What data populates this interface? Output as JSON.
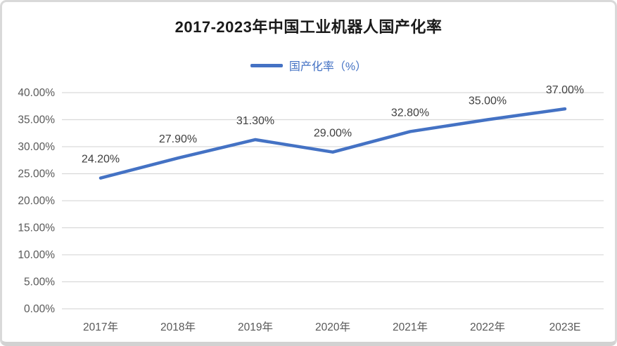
{
  "title": "2017-2023年中国工业机器人国产化率",
  "legend": {
    "label": "国产化率（%）",
    "color": "#4472C4"
  },
  "chart_data": {
    "type": "line",
    "title": "2017-2023年中国工业机器人国产化率",
    "categories": [
      "2017年",
      "2018年",
      "2019年",
      "2020年",
      "2021年",
      "2022年",
      "2023E"
    ],
    "series": [
      {
        "name": "国产化率（%）",
        "values": [
          24.2,
          27.9,
          31.3,
          29.0,
          32.8,
          35.0,
          37.0
        ]
      }
    ],
    "data_labels": [
      "24.20%",
      "27.90%",
      "31.30%",
      "29.00%",
      "32.80%",
      "35.00%",
      "37.00%"
    ],
    "y_ticks": [
      "0.00%",
      "5.00%",
      "10.00%",
      "15.00%",
      "20.00%",
      "25.00%",
      "30.00%",
      "35.00%",
      "40.00%"
    ],
    "ylim": [
      0,
      40
    ],
    "xlabel": "",
    "ylabel": "",
    "legend_position": "top-center",
    "grid": "horizontal-only",
    "colors": {
      "line": "#4472C4",
      "gridline": "#d9d9d9",
      "tick_text": "#595959",
      "data_label_text": "#404040",
      "title_text": "#1a1a1a",
      "background": "#ffffff",
      "card_border": "#d9d9d9"
    }
  }
}
